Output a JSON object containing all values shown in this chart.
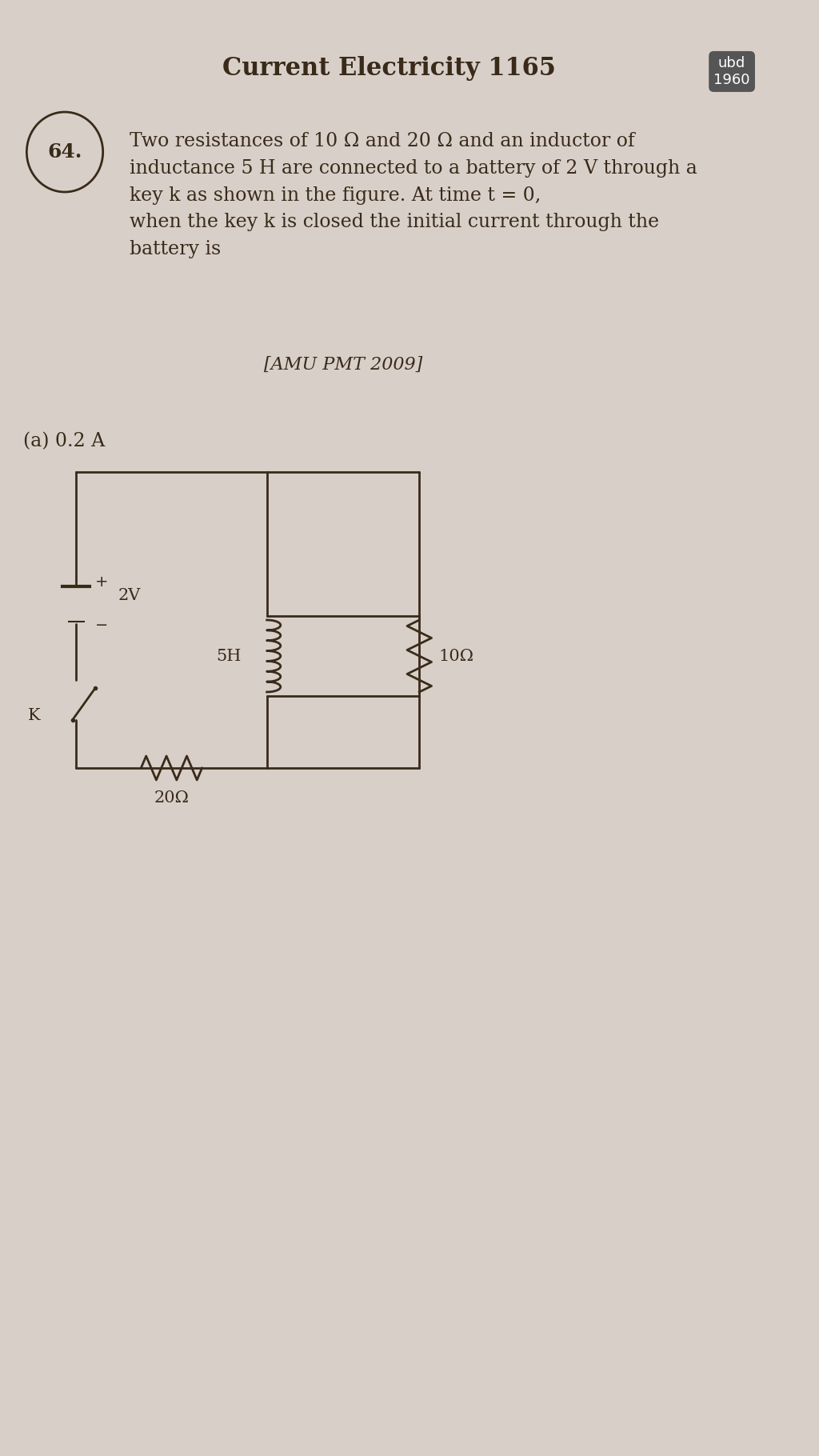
{
  "title": "Current Electricity 1165",
  "question_number": "64.",
  "question_text": "Two resistances of 10 Ω and 20 Ω and an inductor of\ninductance 5 H are connected to a battery of 2 V through a\nkey k as shown in the figure. At time t = 0,\nwhen the key k is closed the initial current through the\nbattery is",
  "citation": "[AMU PMT 2009]",
  "answer_partial": "(a) 0.2 A",
  "ubd_label": "ubd\n1960",
  "bg_color": "#d8d0c8",
  "circuit": {
    "battery_voltage": "2V",
    "R1": "10Ω",
    "R2": "20Ω",
    "L": "5H",
    "key": "K"
  }
}
